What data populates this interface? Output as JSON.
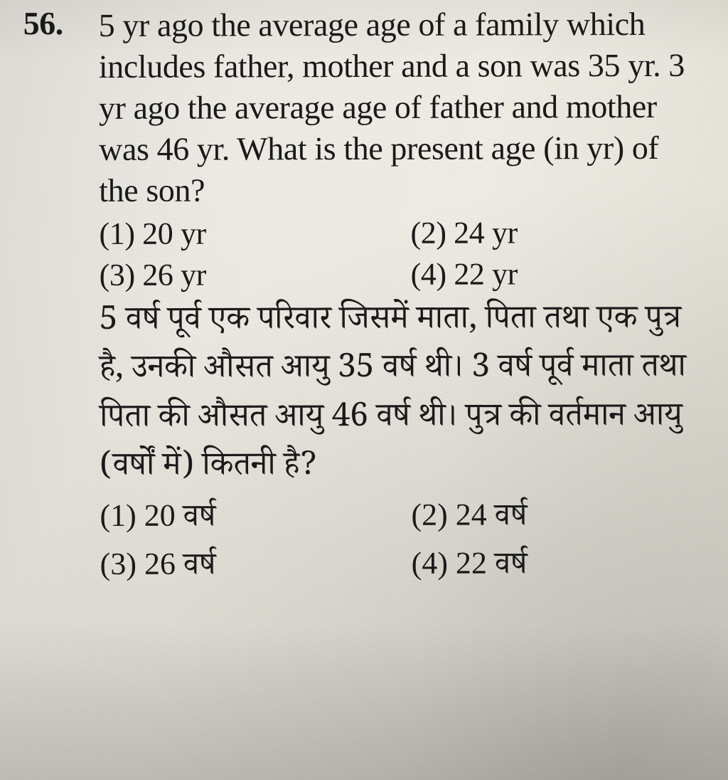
{
  "question": {
    "number": "56.",
    "english": "5 yr ago the average age of a family which includes father, mother and a son was 35 yr. 3 yr ago the average age of father and mother was 46 yr. What is the present age (in yr) of the son?",
    "options_en": {
      "a": "(1) 20 yr",
      "b": "(2) 24 yr",
      "c": "(3) 26 yr",
      "d": "(4) 22 yr"
    },
    "hindi": "5 वर्ष पूर्व एक परिवार जिसमें माता, पिता तथा एक पुत्र है, उनकी औसत आयु 35 वर्ष थी। 3 वर्ष पूर्व माता तथा पिता की औसत आयु 46 वर्ष थी। पुत्र की वर्तमान आयु (वर्षों में) कितनी है?",
    "options_hi": {
      "a_num": "(1) 20 ",
      "a_unit": "वर्ष",
      "b_num": "(2) 24 ",
      "b_unit": "वर्ष",
      "c_num": "(3) 26 ",
      "c_unit": "वर्ष",
      "d_num": "(4) 22 ",
      "d_unit": "वर्ष"
    }
  },
  "style": {
    "base_font_pt": 46,
    "text_color": "#1a1a1a",
    "paper_bg_from": "#d8d5ce",
    "paper_bg_to": "#e2dfd5"
  }
}
